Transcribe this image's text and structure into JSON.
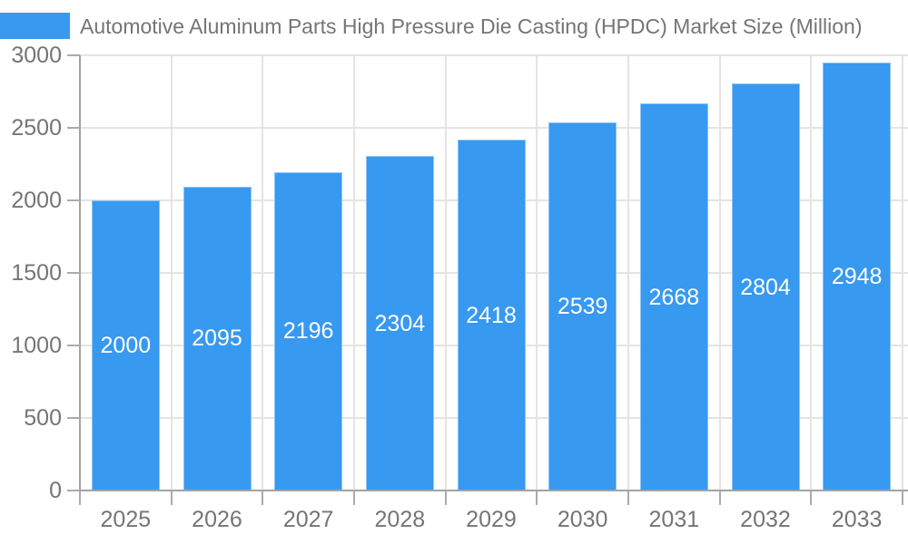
{
  "chart_data": {
    "type": "bar",
    "title": "Automotive Aluminum Parts High Pressure Die Casting (HPDC) Market Size (Million)",
    "legend": {
      "position": "top-left",
      "entries": [
        {
          "label": "Automotive Aluminum Parts High Pressure Die Casting (HPDC) Market Size (Million)",
          "swatch_color": "#3799F0"
        }
      ]
    },
    "categories": [
      "2025",
      "2026",
      "2027",
      "2028",
      "2029",
      "2030",
      "2031",
      "2032",
      "2033"
    ],
    "values": [
      2000,
      2095,
      2196,
      2304,
      2418,
      2539,
      2668,
      2804,
      2948
    ],
    "bar_value_labels": [
      "2000",
      "2095",
      "2196",
      "2304",
      "2418",
      "2539",
      "2668",
      "2804",
      "2948"
    ],
    "xlabel": "",
    "ylabel": "",
    "ylim": [
      0,
      3000
    ],
    "yticks": [
      0,
      500,
      1000,
      1500,
      2000,
      2500,
      3000
    ],
    "grid": true,
    "colors": {
      "bar": "#3799F0",
      "bar_border": "#8EC4F6",
      "bar_label_text": "#FFFFFF",
      "gridline": "#E4E4E4",
      "axis_line": "#A2A2A2",
      "tick_mark": "#ABABAB",
      "tick_text": "#757575",
      "legend_text": "#757575",
      "background": "#FFFFFF"
    }
  }
}
